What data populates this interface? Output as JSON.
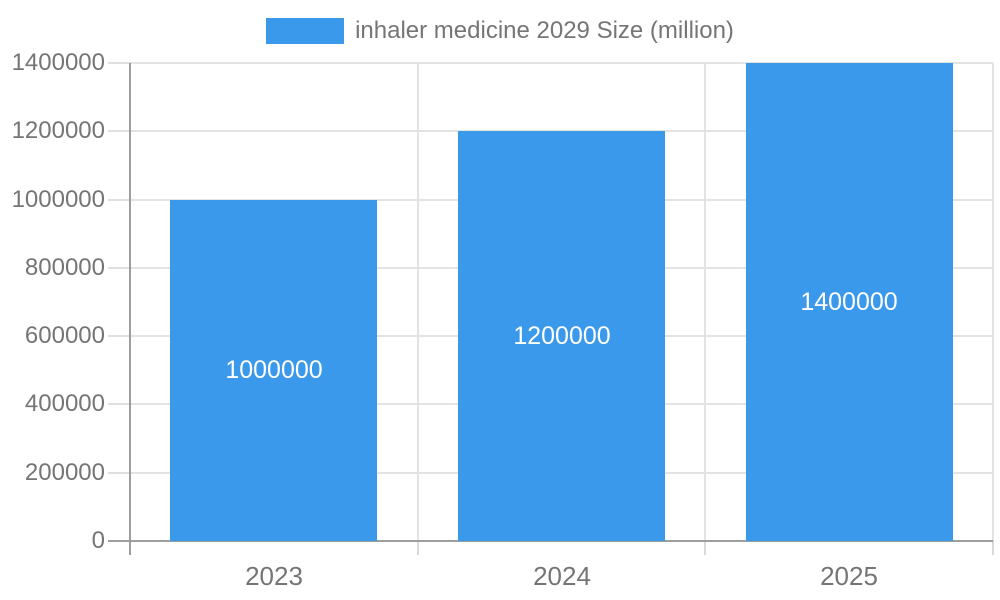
{
  "legend": {
    "label": "inhaler medicine 2029 Size (million)"
  },
  "chart_data": {
    "type": "bar",
    "title": "",
    "xlabel": "",
    "ylabel": "",
    "categories": [
      "2023",
      "2024",
      "2025"
    ],
    "series": [
      {
        "name": "inhaler medicine 2029 Size (million)",
        "values": [
          1000000,
          1200000,
          1400000
        ]
      }
    ],
    "bar_value_labels": [
      "1000000",
      "1200000",
      "1400000"
    ],
    "ylim": [
      0,
      1400000
    ],
    "yticks": [
      0,
      200000,
      400000,
      600000,
      800000,
      1000000,
      1200000,
      1400000
    ],
    "grid": "on",
    "legend_position": "top",
    "colors": {
      "bar": "#3b99ec",
      "axis_text": "#757575",
      "value_label": "#ffffff",
      "grid_line": "#e3e3e3",
      "axis_line": "#9e9e9e"
    }
  }
}
